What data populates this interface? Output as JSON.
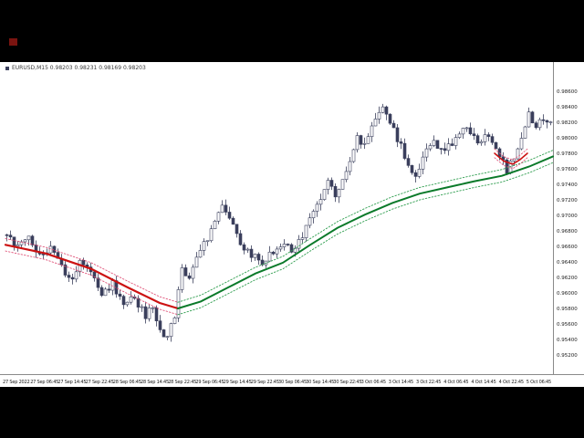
{
  "window": {
    "background_color": "#000000",
    "app_logo_color": "#7a1410"
  },
  "chart": {
    "symbol_info": "EURUSD,M15 0.98203 0.98231 0.98169 0.98203",
    "background_color": "#ffffff",
    "axis_line_color": "#8a8a8a",
    "axis_text_color": "#1a1a1a"
  },
  "chart_data": {
    "type": "candlestick",
    "symbol": "EURUSD",
    "timeframe": "M15",
    "title": "EURUSD,M15 0.98203 0.98231 0.98169 0.98203",
    "y_axis": {
      "min": 0.9495,
      "max": 0.9898,
      "tick_step": 0.002,
      "ticks": [
        "0.98600",
        "0.98400",
        "0.98200",
        "0.98000",
        "0.97800",
        "0.97600",
        "0.97400",
        "0.97200",
        "0.97000",
        "0.96800",
        "0.96600",
        "0.96400",
        "0.96200",
        "0.96000",
        "0.95800",
        "0.95600",
        "0.95400",
        "0.95200"
      ]
    },
    "x_axis": {
      "labels": [
        "27 Sep 2022",
        "27 Sep 06:45",
        "27 Sep 14:45",
        "27 Sep 22:45",
        "28 Sep 06:45",
        "28 Sep 14:45",
        "28 Sep 22:45",
        "29 Sep 06:45",
        "29 Sep 14:45",
        "29 Sep 22:45",
        "30 Sep 06:45",
        "30 Sep 14:45",
        "30 Sep 22:45",
        "3 Oct 06:45",
        "3 Oct 14:45",
        "3 Oct 22:45",
        "4 Oct 06:45",
        "4 Oct 14:45",
        "4 Oct 22:45",
        "5 Oct 06:45"
      ]
    },
    "candle_count": 150,
    "close_path_anchors": [
      [
        0,
        0.968
      ],
      [
        3,
        0.9658
      ],
      [
        6,
        0.967
      ],
      [
        9,
        0.9645
      ],
      [
        12,
        0.9655
      ],
      [
        15,
        0.9635
      ],
      [
        18,
        0.9615
      ],
      [
        20,
        0.9645
      ],
      [
        23,
        0.9625
      ],
      [
        26,
        0.96
      ],
      [
        29,
        0.9612
      ],
      [
        32,
        0.9585
      ],
      [
        35,
        0.9595
      ],
      [
        38,
        0.957
      ],
      [
        40,
        0.9582
      ],
      [
        42,
        0.955
      ],
      [
        44,
        0.9545
      ],
      [
        46,
        0.9568
      ],
      [
        48,
        0.963
      ],
      [
        50,
        0.9622
      ],
      [
        53,
        0.9655
      ],
      [
        56,
        0.968
      ],
      [
        59,
        0.971
      ],
      [
        61,
        0.9695
      ],
      [
        64,
        0.9665
      ],
      [
        67,
        0.965
      ],
      [
        70,
        0.9638
      ],
      [
        73,
        0.9655
      ],
      [
        76,
        0.9668
      ],
      [
        78,
        0.965
      ],
      [
        81,
        0.9675
      ],
      [
        84,
        0.97
      ],
      [
        86,
        0.9725
      ],
      [
        88,
        0.975
      ],
      [
        90,
        0.9728
      ],
      [
        93,
        0.976
      ],
      [
        96,
        0.98
      ],
      [
        98,
        0.9788
      ],
      [
        100,
        0.9812
      ],
      [
        103,
        0.9842
      ],
      [
        105,
        0.9818
      ],
      [
        107,
        0.98
      ],
      [
        110,
        0.9768
      ],
      [
        112,
        0.9745
      ],
      [
        114,
        0.9775
      ],
      [
        117,
        0.9795
      ],
      [
        120,
        0.9782
      ],
      [
        123,
        0.98
      ],
      [
        126,
        0.9812
      ],
      [
        129,
        0.9795
      ],
      [
        132,
        0.9802
      ],
      [
        135,
        0.9778
      ],
      [
        137,
        0.9758
      ],
      [
        139,
        0.9772
      ],
      [
        141,
        0.98
      ],
      [
        143,
        0.983
      ],
      [
        145,
        0.9812
      ],
      [
        147,
        0.9826
      ],
      [
        149,
        0.982
      ]
    ],
    "ma_red": [
      [
        6,
        0.9662
      ],
      [
        50,
        0.9651
      ],
      [
        100,
        0.9631
      ],
      [
        140,
        0.9607
      ],
      [
        175,
        0.9587
      ],
      [
        195,
        0.958
      ]
    ],
    "ma_green": [
      [
        195,
        0.958
      ],
      [
        220,
        0.9589
      ],
      [
        250,
        0.9607
      ],
      [
        280,
        0.9625
      ],
      [
        310,
        0.9639
      ],
      [
        340,
        0.9662
      ],
      [
        370,
        0.9684
      ],
      [
        400,
        0.9701
      ],
      [
        430,
        0.9716
      ],
      [
        460,
        0.9728
      ],
      [
        490,
        0.9736
      ],
      [
        520,
        0.9744
      ],
      [
        550,
        0.9751
      ],
      [
        580,
        0.9763
      ],
      [
        606,
        0.9776
      ]
    ],
    "ma_red_blip": [
      [
        542,
        0.978
      ],
      [
        552,
        0.977
      ],
      [
        562,
        0.9766
      ],
      [
        570,
        0.9772
      ],
      [
        578,
        0.978
      ]
    ],
    "band_offset": 0.0008,
    "colors": {
      "candle": "#3a3f5c",
      "candle_up_fill": "#ffffff",
      "ma_red": "#cc1212",
      "ma_green": "#0b7a2a",
      "band_red": "#e0557a",
      "band_green": "#2f9e4f"
    },
    "legend_position": "none",
    "grid": false
  }
}
